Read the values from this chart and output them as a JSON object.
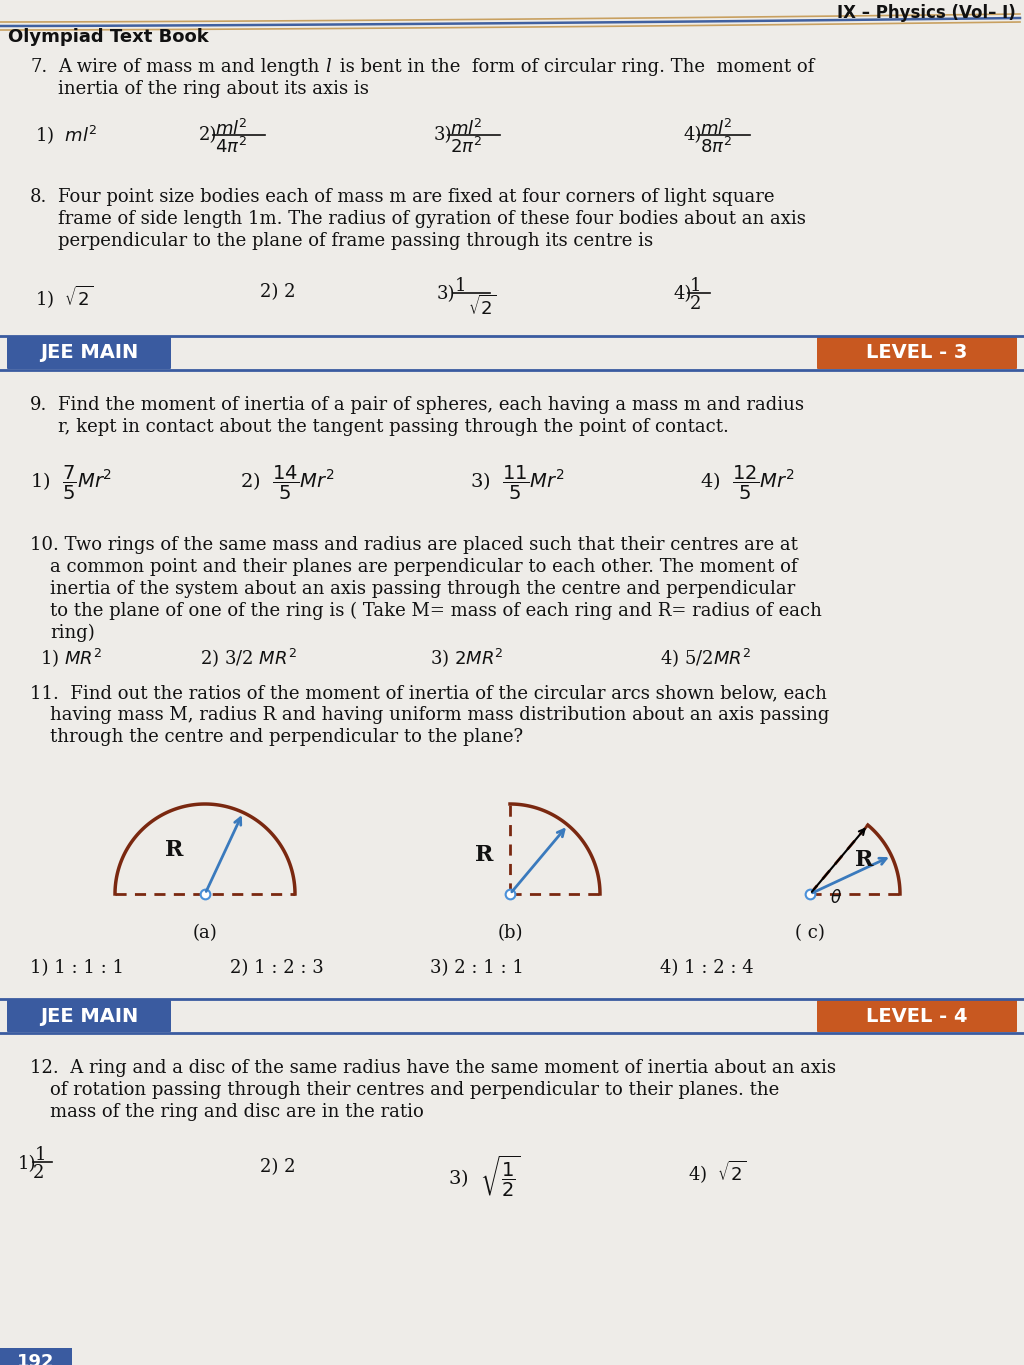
{
  "page_bg": "#eeece8",
  "title_right": "IX – Physics (Vol– I)",
  "title_left": "Olympiad Text Book",
  "jee_main_color": "#3a5ba0",
  "level3_color": "#c85820",
  "level4_color": "#c85820",
  "page_num": "192",
  "arc_color": "#7a2810",
  "radius_line_color": "#3a7abd",
  "center_dot_color": "#4a90d9",
  "text_color": "#111111",
  "line_color_blue": "#4060a0",
  "line_color_tan": "#c8a060"
}
